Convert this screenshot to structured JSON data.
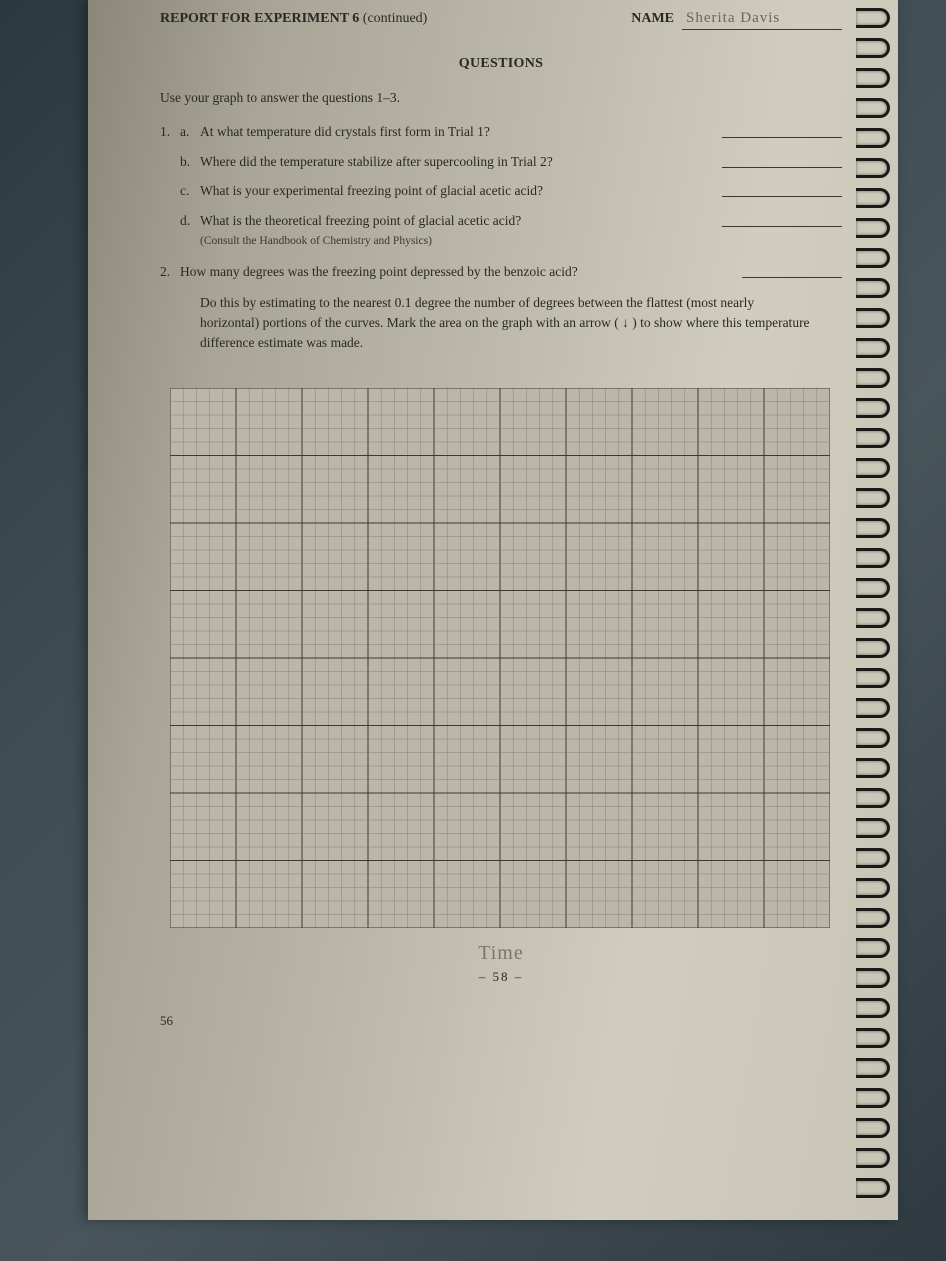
{
  "header": {
    "title_bold": "REPORT FOR EXPERIMENT 6",
    "title_cont": " (continued)",
    "name_label": "NAME",
    "name_value": "Sherita Davis"
  },
  "section_title": "QUESTIONS",
  "instruction": "Use your graph to answer the questions 1–3.",
  "q1": {
    "num": "1.",
    "a": {
      "sub": "a.",
      "text": "At what temperature did crystals first form in Trial 1?"
    },
    "b": {
      "sub": "b.",
      "text": "Where did the temperature stabilize after supercooling in Trial 2?"
    },
    "c": {
      "sub": "c.",
      "text": "What is your experimental freezing point of glacial acetic acid?"
    },
    "d": {
      "sub": "d.",
      "text": "What is the theoretical freezing point of glacial acetic acid?",
      "note": "(Consult the Handbook of Chemistry and Physics)"
    }
  },
  "q2": {
    "num": "2.",
    "text": "How many degrees was the freezing point depressed by the benzoic acid?",
    "para": "Do this by estimating to the nearest 0.1 degree the number of degrees between the flattest (most nearly horizontal) portions of the curves. Mark the area on the graph with an arrow ( ↓ ) to show where this temperature difference estimate was made."
  },
  "graph": {
    "cols": 50,
    "rows": 40,
    "major_every": 5,
    "minor_color": "#7a7668",
    "major_color": "#3e3a32",
    "bg_color": "#bab6a8",
    "minor_width": 0.4,
    "major_width": 1.0,
    "axis_label": "Time"
  },
  "page_number": "– 58 –",
  "corner_number": "56",
  "spiral_count": 40
}
